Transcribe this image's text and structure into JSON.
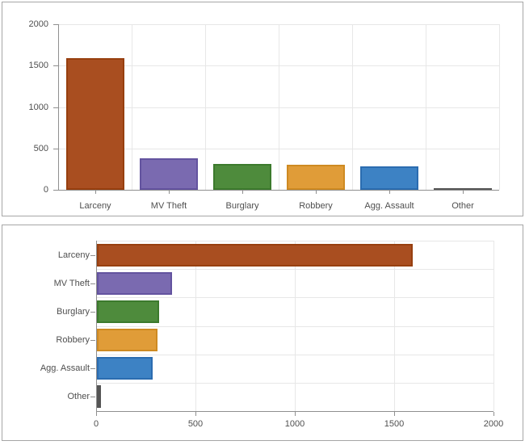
{
  "chart_data": [
    {
      "type": "bar",
      "orientation": "vertical",
      "title": "",
      "xlabel": "",
      "ylabel": "",
      "categories": [
        "Larceny",
        "MV Theft",
        "Burglary",
        "Robbery",
        "Agg. Assault",
        "Other"
      ],
      "values": [
        1590,
        380,
        315,
        305,
        280,
        20
      ],
      "value_axis": {
        "min": 0,
        "max": 2000,
        "ticks": [
          0,
          500,
          1000,
          1500,
          2000
        ],
        "tick_labels": [
          "0",
          "500",
          "1000",
          "1500",
          "2000"
        ]
      },
      "grid": true,
      "legend": "none"
    },
    {
      "type": "bar",
      "orientation": "horizontal",
      "title": "",
      "xlabel": "",
      "ylabel": "",
      "categories": [
        "Larceny",
        "MV Theft",
        "Burglary",
        "Robbery",
        "Agg. Assault",
        "Other"
      ],
      "values": [
        1590,
        380,
        315,
        305,
        280,
        20
      ],
      "value_axis": {
        "min": 0,
        "max": 2000,
        "ticks": [
          0,
          500,
          1000,
          1500,
          2000
        ],
        "tick_labels": [
          "0",
          "500",
          "1000",
          "1500",
          "2000"
        ]
      },
      "grid": true,
      "legend": "none"
    }
  ],
  "palette": {
    "fills": [
      "#a94e20",
      "#7a6ab0",
      "#4e8b3c",
      "#e09c38",
      "#3d82c4",
      "#6f6f6f"
    ],
    "strokes": [
      "#973f0f",
      "#63539f",
      "#3c7a2d",
      "#ce8a22",
      "#2b6cb0",
      "#555555"
    ]
  },
  "colors": {
    "panel_border": "#a6a6a6",
    "grid": "#e7e7e7",
    "axis": "#8f8f8f",
    "label": "#4f4f4f",
    "background": "#ffffff"
  }
}
